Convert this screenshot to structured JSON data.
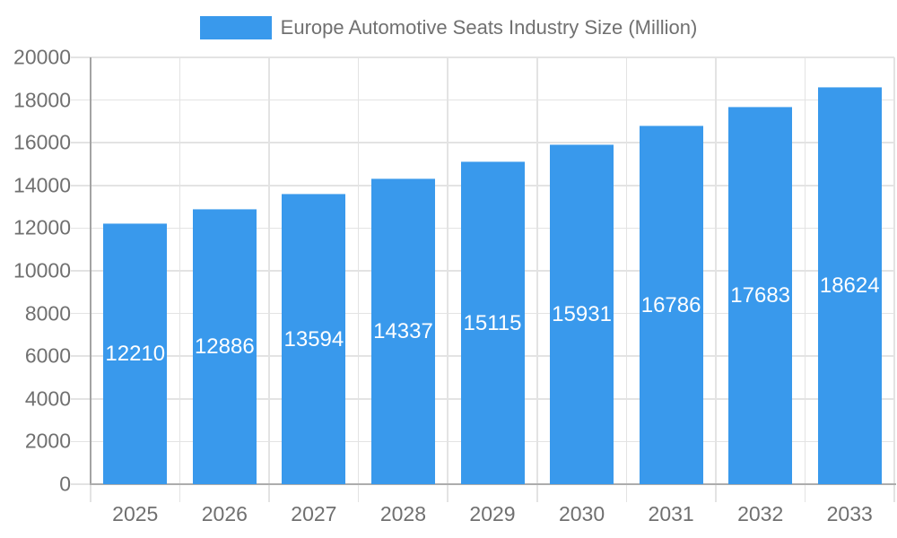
{
  "legend": {
    "swatch_color": "#3999EC"
  },
  "chart_data": {
    "type": "bar",
    "title": "Europe Automotive Seats Industry Size (Million)",
    "categories": [
      "2025",
      "2026",
      "2027",
      "2028",
      "2029",
      "2030",
      "2031",
      "2032",
      "2033"
    ],
    "values": [
      12210,
      12886,
      13594,
      14337,
      15115,
      15931,
      16786,
      17683,
      18624
    ],
    "xlabel": "",
    "ylabel": "",
    "ylim": [
      0,
      20000
    ],
    "yticks": [
      0,
      2000,
      4000,
      6000,
      8000,
      10000,
      12000,
      14000,
      16000,
      18000,
      20000
    ],
    "grid": true,
    "legend_position": "top-center",
    "bar_color": "#3999EC",
    "bar_label_color": "#ffffff",
    "grid_color": "#E3E3E3",
    "axis_color": "#A6A6A6",
    "text_color": "#707070"
  }
}
